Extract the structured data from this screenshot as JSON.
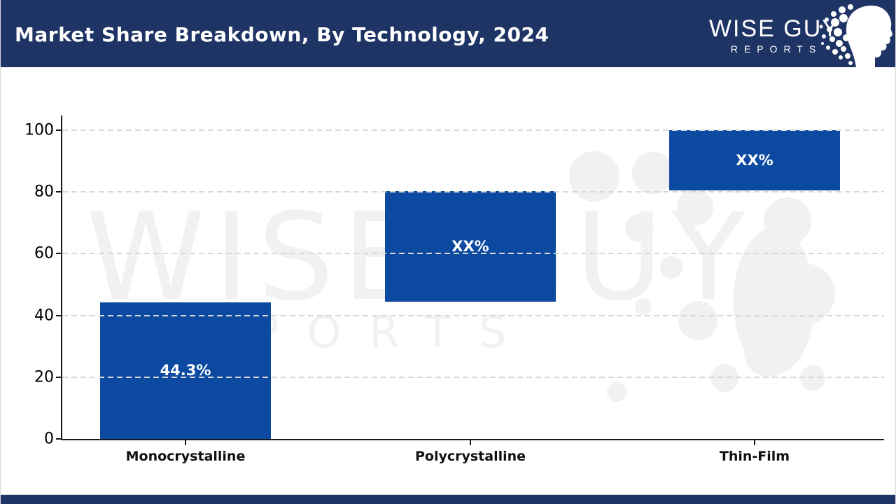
{
  "header": {
    "title": "Market Share Breakdown, By Technology, 2024",
    "background_color": "#1e3464",
    "logo": {
      "line1": "WISE GUY",
      "line2": "REPORTS"
    }
  },
  "watermark": {
    "line1": "WISE GUY",
    "line2": "REPORTS"
  },
  "chart_data": {
    "type": "bar",
    "subtype": "waterfall",
    "title": "Market Share Breakdown, By Technology, 2024",
    "categories": [
      "Monocrystalline",
      "Polycrystalline",
      "Thin-Film"
    ],
    "bars": [
      {
        "category": "Monocrystalline",
        "label": "44.3%",
        "start": 0,
        "end": 44.3
      },
      {
        "category": "Polycrystalline",
        "label": "XX%",
        "start": 44.4,
        "end": 80.3
      },
      {
        "category": "Thin-Film",
        "label": "XX%",
        "start": 80.6,
        "end": 100
      }
    ],
    "y_ticks": [
      0,
      20,
      40,
      60,
      80,
      100
    ],
    "ylim": [
      0,
      104.8
    ],
    "xlabel": "",
    "ylabel": "",
    "grid": "horizontal-dashed",
    "legend": "none",
    "bar_color": "#0b4aa0",
    "bar_label_color": "#ffffff",
    "grid_color": "#d8d8d8",
    "axis_color": "#1a1a1a"
  },
  "footer": {
    "background_color": "#1e3464"
  }
}
